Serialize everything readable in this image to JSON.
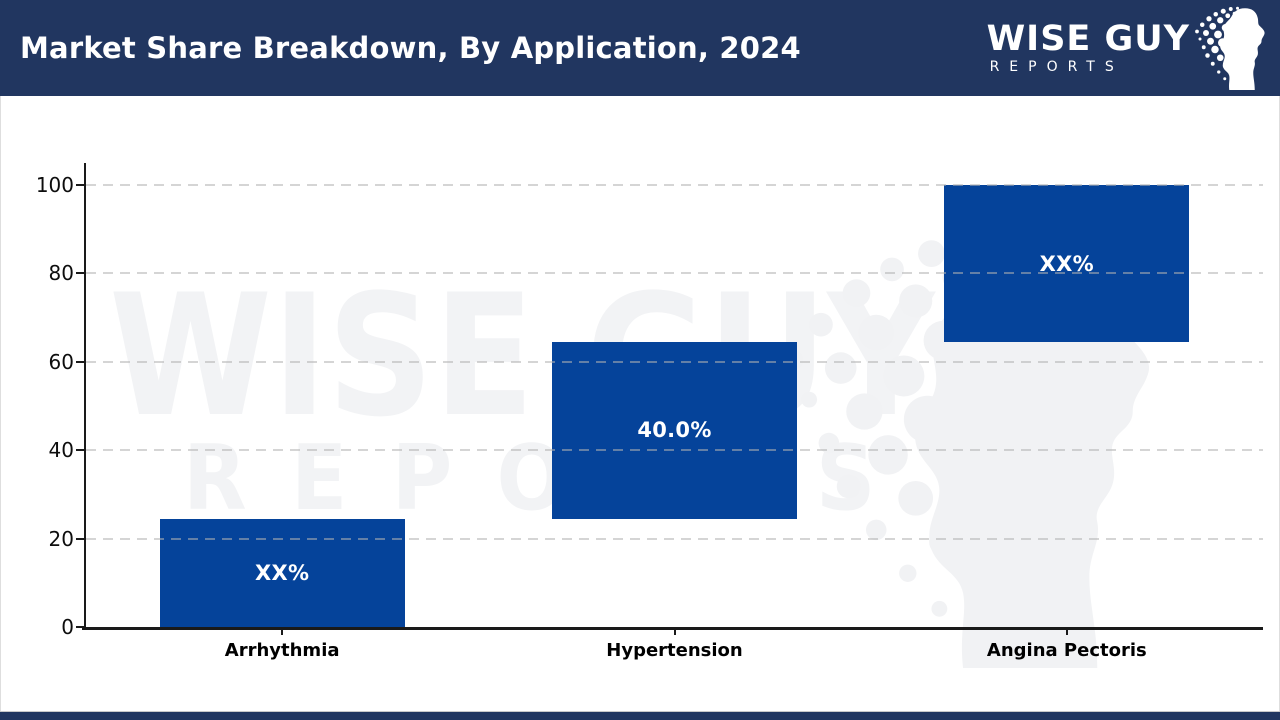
{
  "header": {
    "title": "Market Share Breakdown, By Application, 2024",
    "logo": {
      "wordmark": "WISE GUY",
      "subtext": "REPORTS"
    }
  },
  "watermark": {
    "wordmark": "WISE GUY",
    "subtext": "REPORTS"
  },
  "colors": {
    "header_bg": "#213660",
    "footer_bg": "#213660",
    "bar": "#05439a",
    "grid": "rgba(178,178,178,0.55)",
    "axis": "#1a1a1a",
    "bar_label_text": "#ffffff",
    "watermark": "#f2f3f5"
  },
  "chart_data": {
    "type": "bar",
    "subtype": "waterfall",
    "title": "Market Share Breakdown, By Application, 2024",
    "categories": [
      "Arrhythmia",
      "Hypertension",
      "Angina Pectoris"
    ],
    "series": [
      {
        "name": "Market share (%)",
        "segments": [
          {
            "category": "Arrhythmia",
            "start": 0,
            "end": 24.5,
            "label": "XX%"
          },
          {
            "category": "Hypertension",
            "start": 24.5,
            "end": 64.5,
            "label": "40.0%"
          },
          {
            "category": "Angina Pectoris",
            "start": 64.5,
            "end": 100,
            "label": "XX%"
          }
        ]
      }
    ],
    "xlabel": "",
    "ylabel": "",
    "ylim": [
      0,
      105
    ],
    "yticks": [
      0,
      20,
      40,
      60,
      80,
      100
    ],
    "grid": "horizontal dashed, drawn over bars",
    "legend": "none",
    "bar_width_fraction": 0.625,
    "bar_color": "#05439a"
  }
}
